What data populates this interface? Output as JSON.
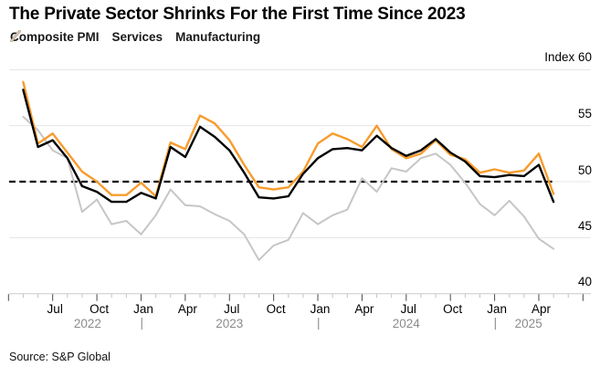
{
  "title": "The Private Sector Shrinks For the First Time Since 2023",
  "legend": {
    "items": [
      {
        "label": "Composite PMI",
        "color": "#000000"
      },
      {
        "label": "Services",
        "color": "#F79C2D"
      },
      {
        "label": "Manufacturing",
        "color": "#C6C6C6"
      }
    ]
  },
  "source": "Source: S&P Global",
  "chart_data": {
    "type": "line",
    "title": "The Private Sector Shrinks For the First Time Since 2023",
    "unit_label": "Index 60",
    "ylim": [
      40,
      60
    ],
    "yticks": [
      40,
      45,
      50,
      55,
      60
    ],
    "grid": "horizontal",
    "legend_position": "top",
    "reference_line": {
      "value": 50,
      "style": "dashed",
      "color": "#000000"
    },
    "x_tick_labels": [
      "Jul",
      "Oct",
      "Jan",
      "Apr",
      "Jul",
      "Oct",
      "Jan",
      "Apr",
      "Jul",
      "Oct",
      "Jan",
      "Apr"
    ],
    "year_labels": [
      "2022",
      "2023",
      "2024",
      "2025"
    ],
    "x": [
      "Apr 2022",
      "May 2022",
      "Jun 2022",
      "Jul 2022",
      "Aug 2022",
      "Sep 2022",
      "Oct 2022",
      "Nov 2022",
      "Dec 2022",
      "Jan 2023",
      "Feb 2023",
      "Mar 2023",
      "Apr 2023",
      "May 2023",
      "Jun 2023",
      "Jul 2023",
      "Aug 2023",
      "Sep 2023",
      "Oct 2023",
      "Nov 2023",
      "Dec 2023",
      "Jan 2024",
      "Feb 2024",
      "Mar 2024",
      "Apr 2024",
      "May 2024",
      "Jun 2024",
      "Jul 2024",
      "Aug 2024",
      "Sep 2024",
      "Oct 2024",
      "Nov 2024",
      "Dec 2024",
      "Jan 2025",
      "Feb 2025",
      "Mar 2025",
      "Apr 2025"
    ],
    "series": [
      {
        "name": "Composite PMI",
        "color": "#000000",
        "stroke_width": 2.4,
        "values": [
          58.2,
          53.1,
          53.7,
          52.1,
          49.6,
          49.1,
          48.2,
          48.2,
          49.0,
          48.5,
          53.1,
          52.2,
          54.9,
          54.0,
          52.8,
          50.8,
          48.6,
          48.5,
          48.7,
          50.7,
          52.1,
          52.9,
          53.0,
          52.8,
          54.1,
          53.0,
          52.3,
          52.8,
          53.8,
          52.6,
          51.8,
          50.5,
          50.4,
          50.6,
          50.5,
          51.5,
          48.2
        ]
      },
      {
        "name": "Services",
        "color": "#F79C2D",
        "stroke_width": 2.4,
        "values": [
          58.9,
          53.4,
          54.3,
          52.6,
          50.9,
          50.0,
          48.8,
          48.8,
          49.9,
          48.7,
          53.5,
          52.9,
          55.9,
          55.2,
          53.7,
          51.5,
          49.5,
          49.3,
          49.5,
          50.9,
          53.4,
          54.3,
          53.8,
          53.1,
          55.0,
          52.9,
          52.1,
          52.5,
          53.7,
          52.4,
          52.0,
          50.8,
          51.1,
          50.8,
          51.0,
          52.5,
          48.9
        ]
      },
      {
        "name": "Manufacturing",
        "color": "#C6C6C6",
        "stroke_width": 2.0,
        "values": [
          55.8,
          54.6,
          52.8,
          52.1,
          47.3,
          48.4,
          46.2,
          46.5,
          45.3,
          47.0,
          49.3,
          47.9,
          47.8,
          47.1,
          46.5,
          45.3,
          43.0,
          44.3,
          44.8,
          47.2,
          46.2,
          47.0,
          47.5,
          50.3,
          49.1,
          51.2,
          50.9,
          52.1,
          52.5,
          51.5,
          49.9,
          48.0,
          47.0,
          48.3,
          46.9,
          44.9,
          44.0
        ]
      }
    ]
  }
}
